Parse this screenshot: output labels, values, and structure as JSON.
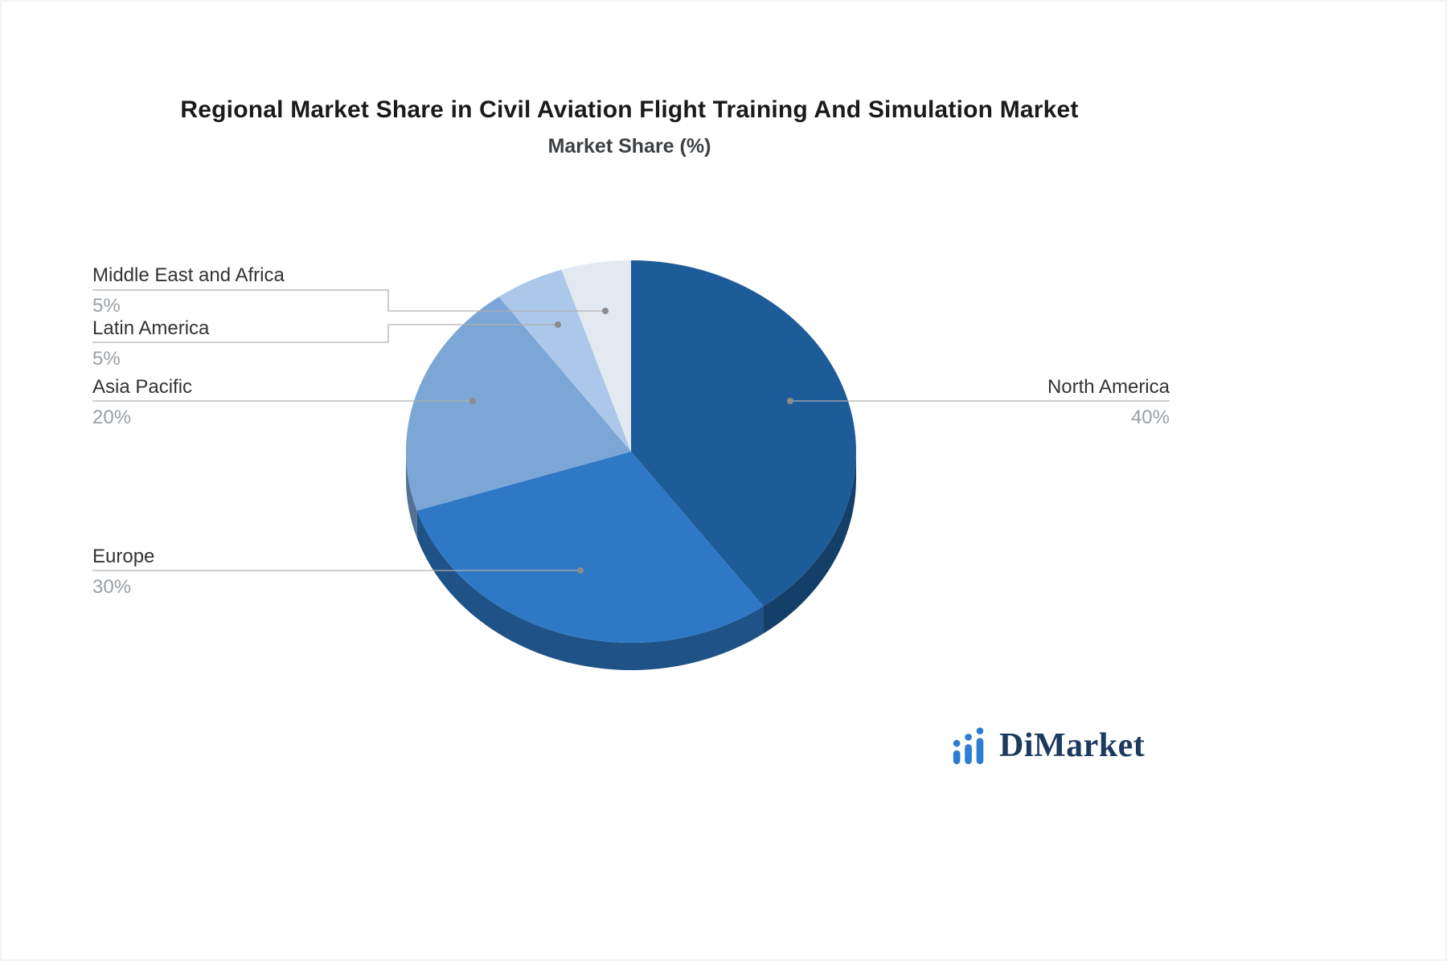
{
  "header": {
    "title": "Regional Market Share in Civil Aviation Flight Training And Simulation Market",
    "subtitle": "Market Share (%)"
  },
  "brand": {
    "name": "DiMarket",
    "icon": "bar-chart-logo-icon",
    "accent_color": "#2d7dd2",
    "text_color": "#1b3a5e"
  },
  "chart_data": {
    "type": "pie",
    "title": "Regional Market Share in Civil Aviation Flight Training And Simulation Market",
    "subtitle": "Market Share (%)",
    "unit": "percent",
    "total": 100,
    "start_angle_deg": -90,
    "direction": "clockwise",
    "effect": "3d",
    "legend_position": "callout-labels",
    "segments": [
      {
        "label": "North America",
        "value": 40,
        "pct": "40%",
        "color": "#1e5c99"
      },
      {
        "label": "Europe",
        "value": 30,
        "pct": "30%",
        "color": "#2e78c6"
      },
      {
        "label": "Asia Pacific",
        "value": 20,
        "pct": "20%",
        "color": "#7ba6d6"
      },
      {
        "label": "Latin America",
        "value": 5,
        "pct": "5%",
        "color": "#abc7e9"
      },
      {
        "label": "Middle East and Africa",
        "value": 5,
        "pct": "5%",
        "color": "#e3e9f0"
      }
    ]
  }
}
